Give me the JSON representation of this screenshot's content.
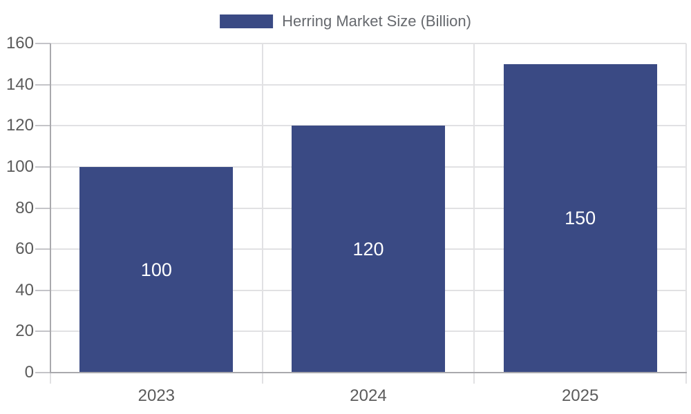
{
  "chart_data": {
    "type": "bar",
    "title": "Herring Market Size (Billion)",
    "categories": [
      "2023",
      "2024",
      "2025"
    ],
    "values": [
      100,
      120,
      150
    ],
    "data_labels": [
      "100",
      "120",
      "150"
    ],
    "xlabel": "",
    "ylabel": "",
    "ylim": [
      0,
      160
    ],
    "ytick_step": 20,
    "yticks": [
      0,
      20,
      40,
      60,
      80,
      100,
      120,
      140,
      160
    ],
    "grid": true,
    "legend": {
      "position": "top-center",
      "entries": [
        "Herring Market Size (Billion)"
      ]
    }
  },
  "colors": {
    "bar_fill": "#3A4A84",
    "data_label_text": "#FFFFFF",
    "axis_tick_label": "#5B5B5B",
    "legend_text": "#66696E",
    "axis_line": "#A9A9AD",
    "gridline": "#E1E1E3",
    "tick_mark": "#C4C4C8",
    "background": "#FFFFFF"
  }
}
